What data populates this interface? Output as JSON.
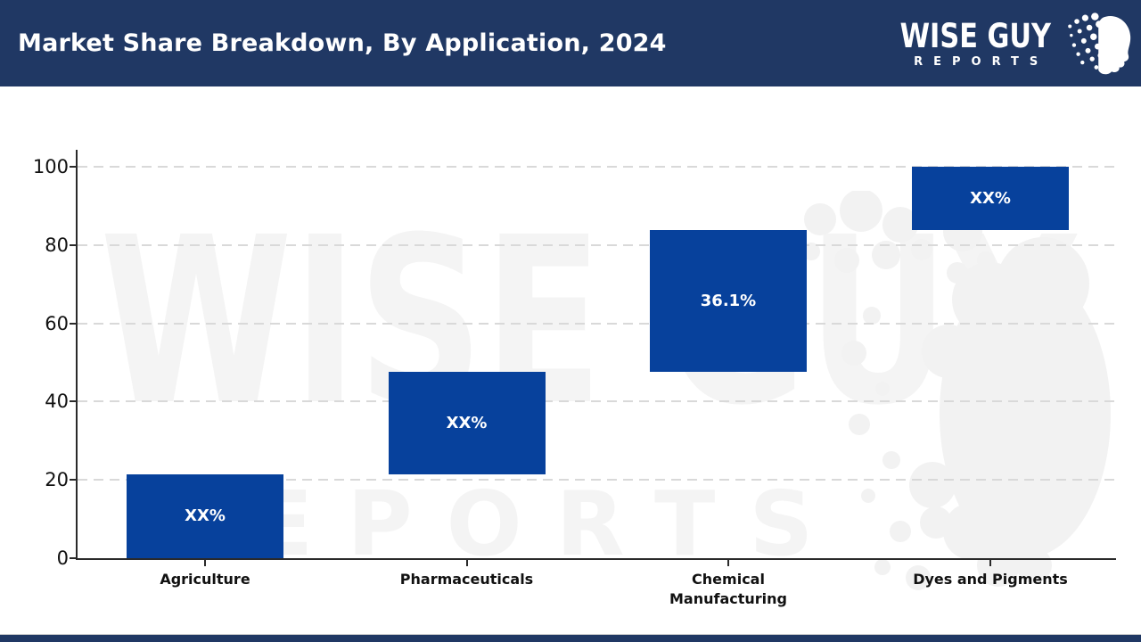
{
  "header": {
    "title": "Market Share Breakdown, By Application, 2024",
    "logo": {
      "line1": "WISE GUY",
      "line2": "REPORTS"
    }
  },
  "watermark": {
    "line1": "WISE GUY",
    "line2": "REPORTS"
  },
  "chart_data": {
    "type": "bar",
    "subtype": "waterfall",
    "title": "Market Share Breakdown, By Application, 2024",
    "categories": [
      "Agriculture",
      "Pharmaceuticals",
      "Chemical Manufacturing",
      "Dyes and Pigments"
    ],
    "segments": [
      {
        "category": "Agriculture",
        "start": 0,
        "end": 21.5,
        "label": "XX%"
      },
      {
        "category": "Pharmaceuticals",
        "start": 21.5,
        "end": 47.7,
        "label": "XX%"
      },
      {
        "category": "Chemical Manufacturing",
        "start": 47.7,
        "end": 83.8,
        "label": "36.1%"
      },
      {
        "category": "Dyes and Pigments",
        "start": 83.8,
        "end": 100,
        "label": "XX%"
      }
    ],
    "y_ticks": [
      0,
      20,
      40,
      60,
      80,
      100
    ],
    "ylim": [
      0,
      105
    ],
    "xlabel": "",
    "ylabel": "",
    "grid": "dashed-horizontal",
    "legend_position": "none"
  },
  "colors": {
    "header_bg": "#203864",
    "footer_bg": "#203864",
    "bar_fill": "#07419c",
    "bar_label_text": "#ffffff",
    "grid_line": "#d9d9d9",
    "axis_line": "#2a2a2a",
    "tick_text": "#111111",
    "watermark": "#f4f4f4",
    "background": "#ffffff"
  }
}
